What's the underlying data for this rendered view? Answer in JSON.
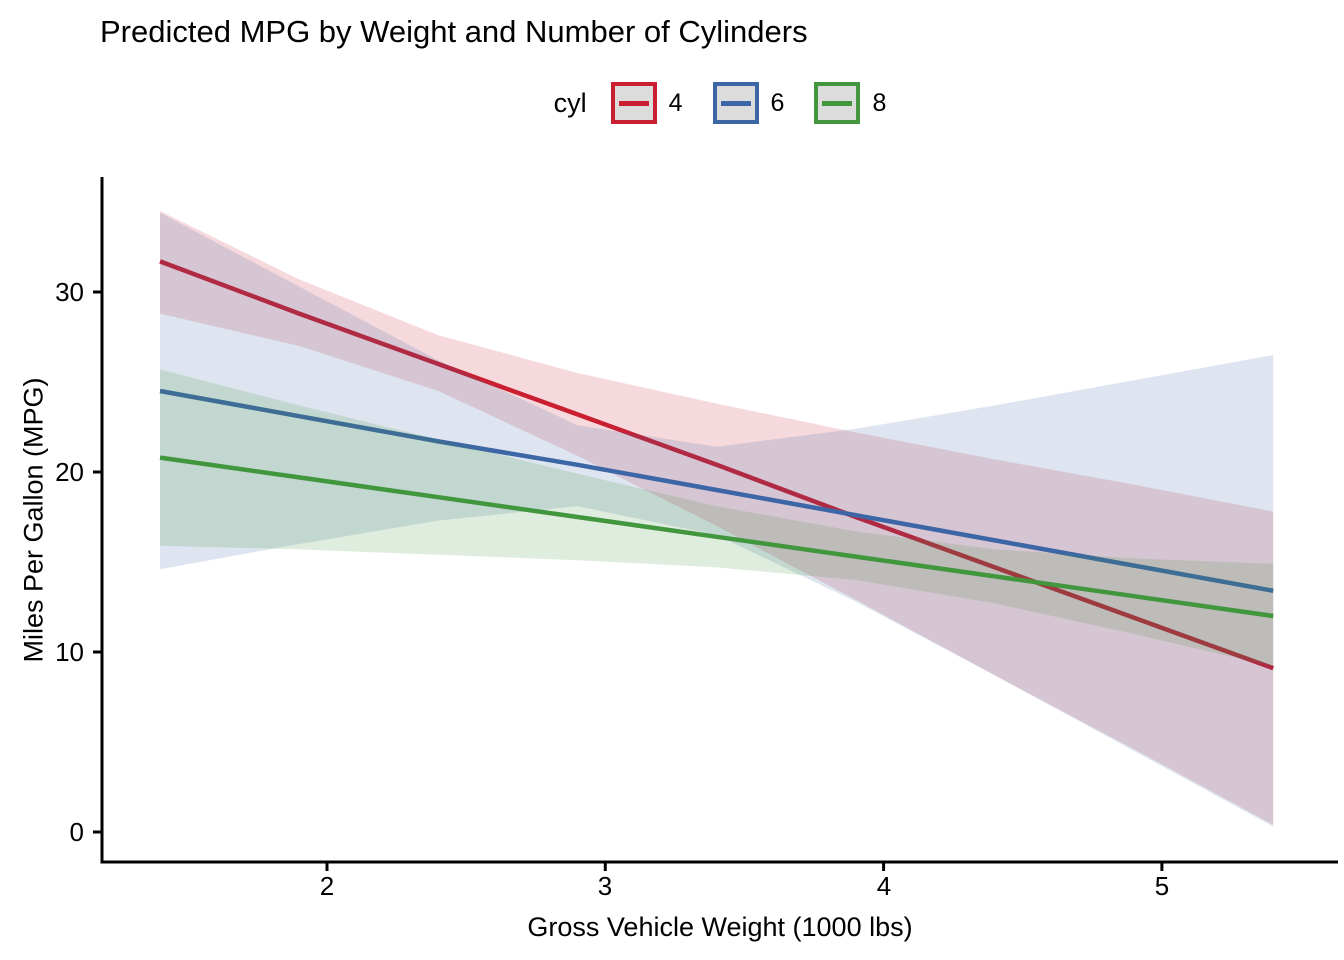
{
  "chart_data": {
    "type": "line",
    "title": "Predicted MPG by Weight and Number of Cylinders",
    "xlabel": "Gross Vehicle Weight (1000 lbs)",
    "ylabel": "Miles Per Gallon (MPG)",
    "grid": false,
    "legend": {
      "title": "cyl",
      "position": "top-center",
      "key_fill": "#DCDCDC",
      "entries": [
        {
          "label": "4",
          "color": "#C91F30"
        },
        {
          "label": "6",
          "color": "#3D66A6"
        },
        {
          "label": "8",
          "color": "#41963E"
        }
      ]
    },
    "axes": {
      "x": {
        "ticks": [
          2,
          3,
          4,
          5
        ],
        "range": [
          1.19,
          5.63
        ]
      },
      "y": {
        "ticks": [
          0,
          10,
          20,
          30
        ],
        "range": [
          -1.7,
          36.4
        ]
      }
    },
    "series": [
      {
        "name": "4",
        "color": "#C91F30",
        "x": [
          1.4,
          1.9,
          2.4,
          2.9,
          3.4,
          3.9,
          4.4,
          4.9,
          5.4
        ],
        "fit": [
          31.7,
          28.8,
          26.0,
          23.2,
          20.4,
          17.5,
          14.7,
          11.9,
          9.1
        ],
        "lower": [
          28.8,
          27.0,
          24.5,
          20.9,
          17.0,
          12.9,
          8.7,
          4.6,
          0.4
        ],
        "upper": [
          34.5,
          30.7,
          27.6,
          25.5,
          23.8,
          22.2,
          20.7,
          19.3,
          17.8
        ]
      },
      {
        "name": "6",
        "color": "#3D66A6",
        "x": [
          1.4,
          1.9,
          2.4,
          2.9,
          3.4,
          3.9,
          4.4,
          4.9,
          5.4
        ],
        "fit": [
          24.5,
          23.1,
          21.7,
          20.4,
          19.0,
          17.6,
          16.2,
          14.8,
          13.4
        ],
        "lower": [
          14.6,
          16.0,
          17.3,
          18.1,
          16.5,
          12.8,
          8.7,
          4.5,
          0.3
        ],
        "upper": [
          34.4,
          30.3,
          26.2,
          22.6,
          21.4,
          22.4,
          23.7,
          25.1,
          26.5
        ]
      },
      {
        "name": "8",
        "color": "#41963E",
        "x": [
          1.4,
          1.9,
          2.4,
          2.9,
          3.4,
          3.9,
          4.4,
          4.9,
          5.4
        ],
        "fit": [
          20.8,
          19.7,
          18.6,
          17.5,
          16.4,
          15.3,
          14.2,
          13.1,
          12.0
        ],
        "lower": [
          15.9,
          15.7,
          15.4,
          15.1,
          14.7,
          14.0,
          12.7,
          11.0,
          9.2
        ],
        "upper": [
          25.7,
          23.7,
          21.8,
          19.9,
          18.1,
          16.7,
          15.7,
          15.2,
          14.9
        ]
      }
    ]
  }
}
